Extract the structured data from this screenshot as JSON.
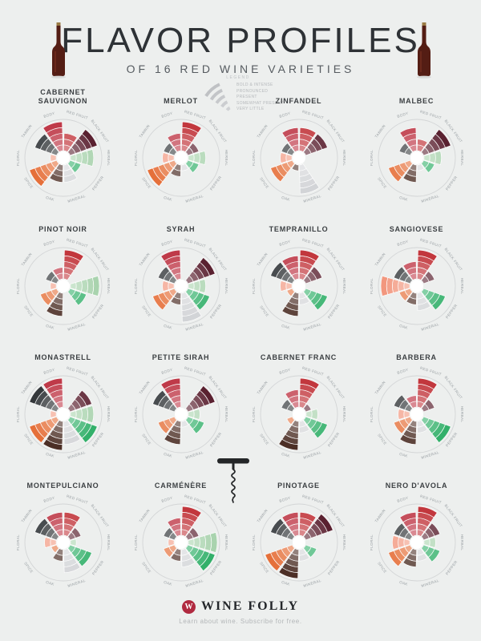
{
  "header": {
    "title": "FLAVOR PROFILES",
    "subtitle": "OF 16 RED WINE VARIETIES"
  },
  "legend": {
    "title": "LEGEND",
    "levels": [
      "BOLD & INTENSE",
      "PRONOUNCED",
      "PRESENT",
      "SOMEWHAT PRESENT",
      "VERY LITTLE"
    ]
  },
  "chart_data": {
    "type": "radial-flavor-wheels",
    "description": "16 polar flavor-profile wheels; each wedge intensity 0-5 concentric bands",
    "scale": [
      0,
      5
    ],
    "axes": [
      {
        "label": "RED FRUIT",
        "color": "#c2373d"
      },
      {
        "label": "BLACK FRUIT",
        "color": "#5a2130"
      },
      {
        "label": "HERBAL",
        "color": "#a9d3ae"
      },
      {
        "label": "PEPPER",
        "color": "#33b06a"
      },
      {
        "label": "MINERAL",
        "color": "#d2d4d7"
      },
      {
        "label": "OAK",
        "color": "#4c2f26"
      },
      {
        "label": "SPICE",
        "color": "#e5703a"
      },
      {
        "label": "FLORAL",
        "color": "#f2977e"
      },
      {
        "label": "TANNIN",
        "color": "#34383b"
      },
      {
        "label": "BODY",
        "color": "#bf3a49"
      }
    ],
    "wines": [
      {
        "name": "CABERNET SAUVIGNON",
        "values": [
          3,
          5,
          4,
          2,
          3,
          3,
          5,
          1,
          4,
          5
        ]
      },
      {
        "name": "MERLOT",
        "values": [
          5,
          2,
          3,
          2,
          1,
          2,
          5,
          2,
          2,
          3
        ]
      },
      {
        "name": "ZINFANDEL",
        "values": [
          4,
          4,
          0,
          0,
          5,
          1,
          4,
          2,
          2,
          4
        ]
      },
      {
        "name": "MALBEC",
        "values": [
          2,
          5,
          3,
          2,
          1,
          3,
          4,
          0,
          2,
          4
        ]
      },
      {
        "name": "PINOT NOIR",
        "values": [
          5,
          0,
          5,
          3,
          0,
          4,
          3,
          1,
          2,
          2
        ]
      },
      {
        "name": "SYRAH",
        "values": [
          0,
          5,
          3,
          4,
          5,
          2,
          4,
          2,
          3,
          5
        ]
      },
      {
        "name": "TEMPRANILLO",
        "values": [
          5,
          3,
          0,
          4,
          2,
          4,
          1,
          2,
          4,
          4
        ]
      },
      {
        "name": "SANGIOVESE",
        "values": [
          5,
          2,
          0,
          4,
          3,
          2,
          2,
          5,
          3,
          3
        ]
      },
      {
        "name": "MONASTRELL",
        "values": [
          0,
          4,
          4,
          5,
          4,
          5,
          5,
          1,
          5,
          5
        ]
      },
      {
        "name": "PETITE SIRAH",
        "values": [
          0,
          5,
          2,
          3,
          1,
          4,
          3,
          0,
          4,
          5
        ]
      },
      {
        "name": "CABERNET FRANC",
        "values": [
          5,
          1,
          2,
          4,
          2,
          5,
          1,
          0,
          2,
          3
        ]
      },
      {
        "name": "BARBERA",
        "values": [
          5,
          2,
          0,
          5,
          2,
          4,
          3,
          2,
          3,
          2
        ]
      },
      {
        "name": "MONTEPULCIANO",
        "values": [
          4,
          2,
          1,
          4,
          4,
          2,
          1,
          2,
          4,
          4
        ]
      },
      {
        "name": "CARMÉNÈRE",
        "values": [
          5,
          2,
          5,
          5,
          3,
          2,
          2,
          1,
          2,
          3
        ]
      },
      {
        "name": "PINOTAGE",
        "values": [
          4,
          5,
          0,
          2,
          2,
          5,
          5,
          0,
          4,
          4
        ]
      },
      {
        "name": "NERO D'AVOLA",
        "values": [
          5,
          3,
          2,
          3,
          2,
          3,
          4,
          3,
          3,
          4
        ]
      }
    ]
  },
  "footer": {
    "logo_letter": "W",
    "brand": "WINE FOLLY",
    "tagline": "Learn about wine. Subscribe for free."
  }
}
